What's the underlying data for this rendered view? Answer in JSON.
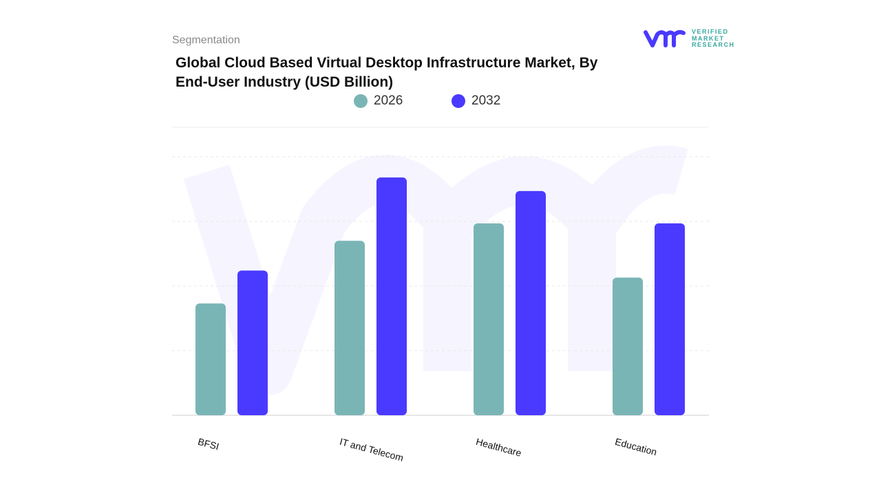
{
  "header": {
    "section": "Segmentation"
  },
  "logo": {
    "text_lines": [
      "VERIFIED",
      "MARKET",
      "RESEARCH"
    ],
    "colors": {
      "mark": "#4a3aff",
      "text": "#3aa8a0"
    }
  },
  "chart_data": {
    "type": "bar",
    "title": "Global Cloud Based Virtual Desktop Infrastructure Market, By End-User Industry (USD Billion)",
    "categories": [
      "BFSI",
      "IT and Telecom",
      "Healthcare",
      "Education"
    ],
    "series": [
      {
        "name": "2026",
        "color": "#7ab5b6",
        "values": [
          1.73,
          2.7,
          2.97,
          2.13
        ]
      },
      {
        "name": "2032",
        "color": "#4a3aff",
        "values": [
          2.24,
          3.68,
          3.47,
          2.97
        ]
      }
    ],
    "xlabel": "",
    "ylabel": "",
    "ylim": [
      0,
      4
    ],
    "grid": true,
    "legend": "top-center",
    "y_ticks_shown": false
  }
}
